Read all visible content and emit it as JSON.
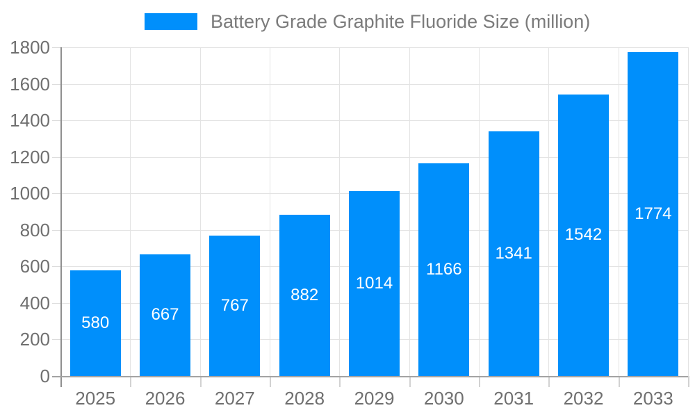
{
  "legend": {
    "label": "Battery Grade Graphite Fluoride Size (million)",
    "swatch_color": "#008FFB"
  },
  "chart_data": {
    "type": "bar",
    "title": "Battery Grade Graphite Fluoride Size (million)",
    "series": [
      {
        "name": "Battery Grade Graphite Fluoride Size (million)",
        "values": [
          580,
          667,
          767,
          882,
          1014,
          1166,
          1341,
          1542,
          1774
        ]
      }
    ],
    "categories": [
      "2025",
      "2026",
      "2027",
      "2028",
      "2029",
      "2030",
      "2031",
      "2032",
      "2033"
    ],
    "data_labels": [
      "580",
      "667",
      "767",
      "882",
      "1014",
      "1166",
      "1341",
      "1542",
      "1774"
    ],
    "xlabel": "",
    "ylabel": "",
    "ylim": [
      0,
      1800
    ],
    "ytick_step": 200,
    "ytick_labels": [
      "0",
      "200",
      "400",
      "600",
      "800",
      "1000",
      "1200",
      "1400",
      "1600",
      "1800"
    ],
    "grid": "horizontal and vertical, light gray",
    "legend_position": "top",
    "colors": {
      "bar": "#008FFB",
      "data_label": "#ffffff",
      "axis_label": "#6f6f6f",
      "legend_label": "#7b7b7b",
      "gridline": "#e3e3e3",
      "axis_line": "#8f8f8f"
    }
  }
}
